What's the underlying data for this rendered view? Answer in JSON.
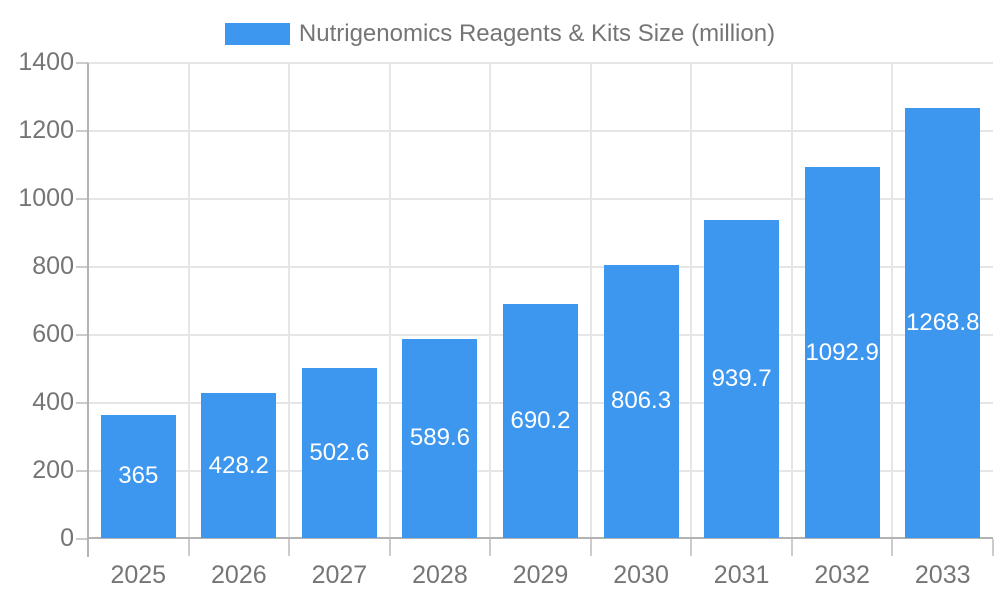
{
  "chart_data": {
    "type": "bar",
    "title": "Nutrigenomics Reagents & Kits Size (million)",
    "legend_position": "top",
    "categories": [
      "2025",
      "2026",
      "2027",
      "2028",
      "2029",
      "2030",
      "2031",
      "2032",
      "2033"
    ],
    "series": [
      {
        "name": "Nutrigenomics Reagents & Kits Size (million)",
        "values": [
          365,
          428.2,
          502.6,
          589.6,
          690.2,
          806.3,
          939.7,
          1092.9,
          1268.8
        ],
        "data_labels": [
          "365",
          "428.2",
          "502.6",
          "589.6",
          "690.2",
          "806.3",
          "939.7",
          "1092.9",
          "1268.8"
        ]
      }
    ],
    "xlabel": "",
    "ylabel": "",
    "ylim": [
      0,
      1400
    ],
    "y_ticks": [
      0,
      200,
      400,
      600,
      800,
      1000,
      1200,
      1400
    ],
    "grid": true,
    "colors": {
      "bar": "#3D97EE",
      "axis_text": "#757575",
      "gridline": "#e6e6e6",
      "axis_line": "#b3b3b3",
      "tick": "#cccccc",
      "value_label": "#ffffff",
      "background": "#ffffff"
    }
  }
}
